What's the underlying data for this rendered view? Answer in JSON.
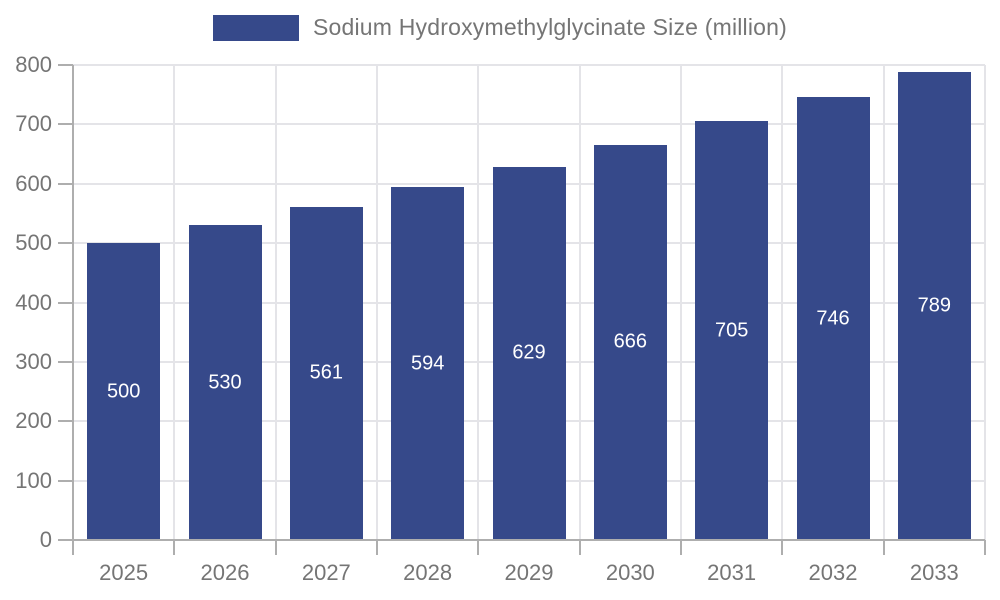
{
  "legend": {
    "label": "Sodium Hydroxymethylglycinate Size (million)",
    "swatch_color": "#36498a"
  },
  "chart_data": {
    "type": "bar",
    "title": "Sodium Hydroxymethylglycinate Size (million)",
    "categories": [
      "2025",
      "2026",
      "2027",
      "2028",
      "2029",
      "2030",
      "2031",
      "2032",
      "2033"
    ],
    "values": [
      500,
      530,
      561,
      594,
      629,
      666,
      705,
      746,
      789
    ],
    "series": [
      {
        "name": "Sodium Hydroxymethylglycinate Size (million)",
        "values": [
          500,
          530,
          561,
          594,
          629,
          666,
          705,
          746,
          789
        ]
      }
    ],
    "value_labels": [
      "500",
      "530",
      "561",
      "594",
      "629",
      "666",
      "705",
      "746",
      "789"
    ],
    "xlabel": "",
    "ylabel": "",
    "ylim": [
      0,
      800
    ],
    "ytick_step": 100,
    "ytick_labels": [
      "0",
      "100",
      "200",
      "300",
      "400",
      "500",
      "600",
      "700",
      "800"
    ],
    "grid": true,
    "legend_position": "top-center",
    "bar_color": "#36498a",
    "value_label_color": "#ffffff",
    "axis_color": "#aeaeae",
    "grid_color": "#e4e4e8",
    "tick_label_color": "#757575"
  }
}
